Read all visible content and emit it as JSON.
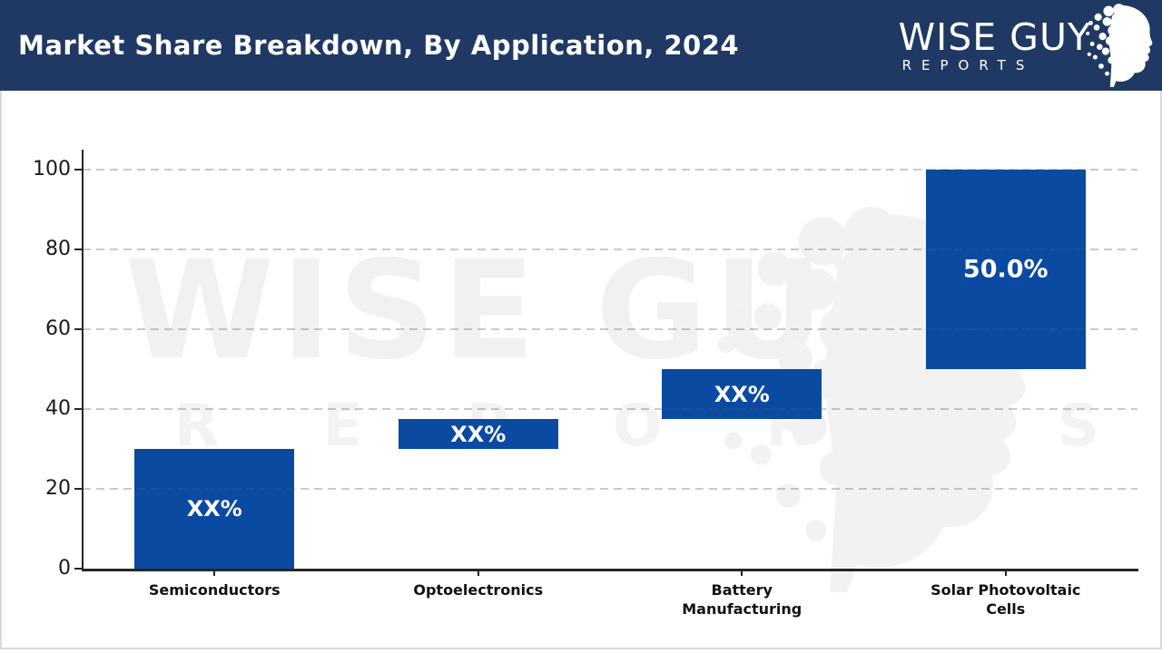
{
  "header": {
    "title": "Market Share Breakdown, By Application, 2024",
    "logo": {
      "name": "WISE GUY",
      "tagline": "REPORTS"
    }
  },
  "watermark": {
    "name": "WISE GUY",
    "tagline": "R E P O R T S"
  },
  "colors": {
    "header_bg": "#203864",
    "bar": "#0B4AA1",
    "bar_label": "#FFFFFF",
    "axis": "#262626",
    "grid_dash": "rgba(90,90,90,0.32)",
    "watermark": "#F1F1F1"
  },
  "chart_data": {
    "type": "bar",
    "subtype": "waterfall",
    "title": "Market Share Breakdown, By Application, 2024",
    "xlabel": "",
    "ylabel": "",
    "ylim": [
      0,
      105
    ],
    "yticks": [
      0,
      20,
      40,
      60,
      80,
      100
    ],
    "grid": "horizontal dashed",
    "legend": "none",
    "categories": [
      "Semiconductors",
      "Optoelectronics",
      "Battery Manufacturing",
      "Solar Photovoltaic Cells"
    ],
    "category_lines": [
      [
        "Semiconductors"
      ],
      [
        "Optoelectronics"
      ],
      [
        "Battery",
        "Manufacturing"
      ],
      [
        "Solar Photovoltaic",
        "Cells"
      ]
    ],
    "segments": [
      {
        "category": "Semiconductors",
        "start": 0,
        "end": 30,
        "label": "XX%"
      },
      {
        "category": "Optoelectronics",
        "start": 30,
        "end": 37.5,
        "label": "XX%"
      },
      {
        "category": "Battery Manufacturing",
        "start": 37.5,
        "end": 50,
        "label": "XX%"
      },
      {
        "category": "Solar Photovoltaic Cells",
        "start": 50,
        "end": 100,
        "label": "50.0%"
      }
    ]
  }
}
